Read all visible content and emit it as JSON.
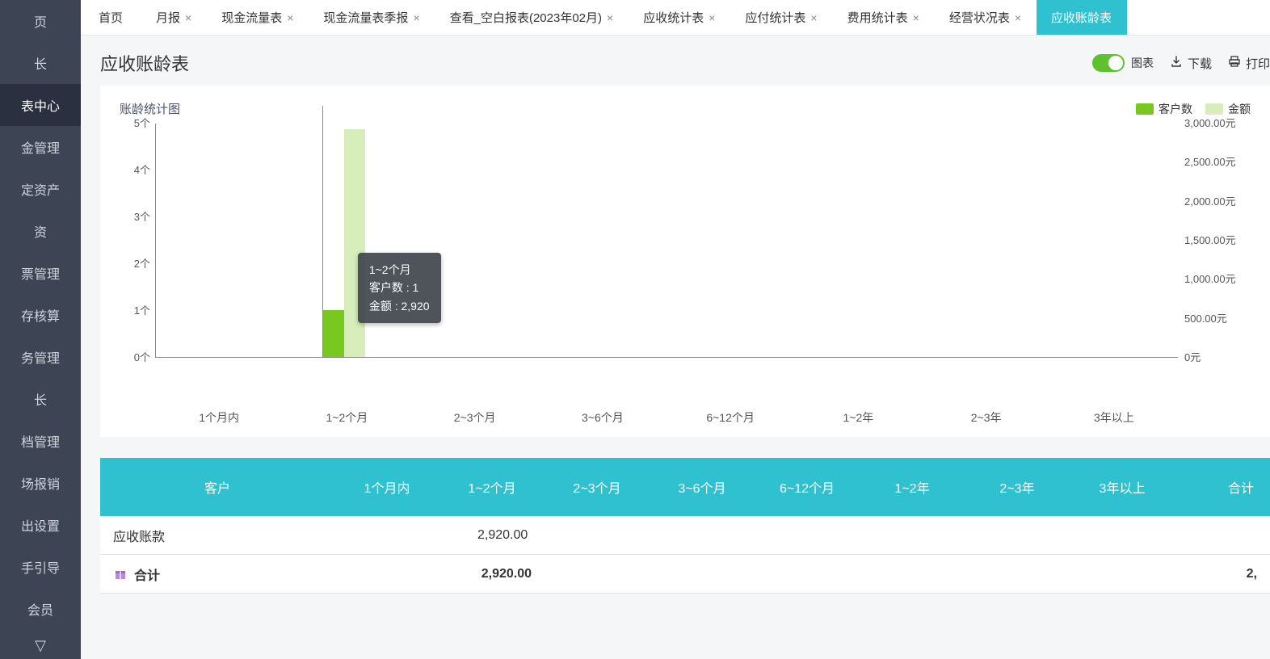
{
  "sidebar": {
    "items": [
      {
        "label": "页"
      },
      {
        "label": "长"
      },
      {
        "label": "表中心",
        "active": true
      },
      {
        "label": "金管理"
      },
      {
        "label": "定资产"
      },
      {
        "label": "资"
      },
      {
        "label": "票管理"
      },
      {
        "label": "存核算"
      },
      {
        "label": "务管理"
      },
      {
        "label": "长"
      },
      {
        "label": "档管理"
      },
      {
        "label": "场报销"
      },
      {
        "label": "出设置"
      },
      {
        "label": "手引导"
      },
      {
        "label": "会员"
      }
    ]
  },
  "tabs": [
    {
      "label": "首页",
      "closable": false
    },
    {
      "label": "月报",
      "closable": true
    },
    {
      "label": "现金流量表",
      "closable": true
    },
    {
      "label": "现金流量表季报",
      "closable": true
    },
    {
      "label": "查看_空白报表(2023年02月)",
      "closable": true
    },
    {
      "label": "应收统计表",
      "closable": true
    },
    {
      "label": "应付统计表",
      "closable": true
    },
    {
      "label": "费用统计表",
      "closable": true
    },
    {
      "label": "经营状况表",
      "closable": true
    },
    {
      "label": "应收账龄表",
      "closable": false,
      "active": true
    }
  ],
  "close_glyph": "×",
  "header": {
    "title": "应收账龄表",
    "toggle_label": "图表",
    "download": "下载",
    "print": "打印"
  },
  "chart": {
    "title": "账龄统计图",
    "legend": [
      {
        "label": "客户数",
        "color": "#78c820"
      },
      {
        "label": "金额",
        "color": "#d7eebb"
      }
    ],
    "categories": [
      "1个月内",
      "1~2个月",
      "2~3个月",
      "3~6个月",
      "6~12个月",
      "1~2年",
      "2~3年",
      "3年以上"
    ],
    "y_left": {
      "ticks": [
        "0个",
        "1个",
        "2个",
        "3个",
        "4个",
        "5个"
      ],
      "max": 5
    },
    "y_right": {
      "ticks": [
        "0元",
        "500.00元",
        "1,000.00元",
        "1,500.00元",
        "2,000.00元",
        "2,500.00元",
        "3,000.00元"
      ],
      "max": 3000
    },
    "series": {
      "customers": [
        0,
        1,
        0,
        0,
        0,
        0,
        0,
        0
      ],
      "amount": [
        0,
        2920,
        0,
        0,
        0,
        0,
        0,
        0
      ]
    },
    "bar_colors": {
      "customers": "#78c820",
      "amount": "#d7eebb"
    },
    "hover_index": 1,
    "tooltip": {
      "title": "1~2个月",
      "line1": "客户数 : 1",
      "line2": "金额 : 2,920"
    }
  },
  "table": {
    "columns": [
      "客户",
      "1个月内",
      "1~2个月",
      "2~3个月",
      "3~6个月",
      "6~12个月",
      "1~2年",
      "2~3年",
      "3年以上",
      "合计"
    ],
    "rows": [
      {
        "cust": "应收账款",
        "values": [
          "",
          "2,920.00",
          "",
          "",
          "",
          "",
          "",
          "",
          ""
        ]
      }
    ],
    "total": {
      "label": "合计",
      "values": [
        "",
        "2,920.00",
        "",
        "",
        "",
        "",
        "",
        "",
        "2,"
      ]
    }
  },
  "colors": {
    "accent": "#2fc1d0",
    "sidebar": "#3d4454",
    "sidebar_active": "#2b3040",
    "toggle": "#5ec12f"
  }
}
